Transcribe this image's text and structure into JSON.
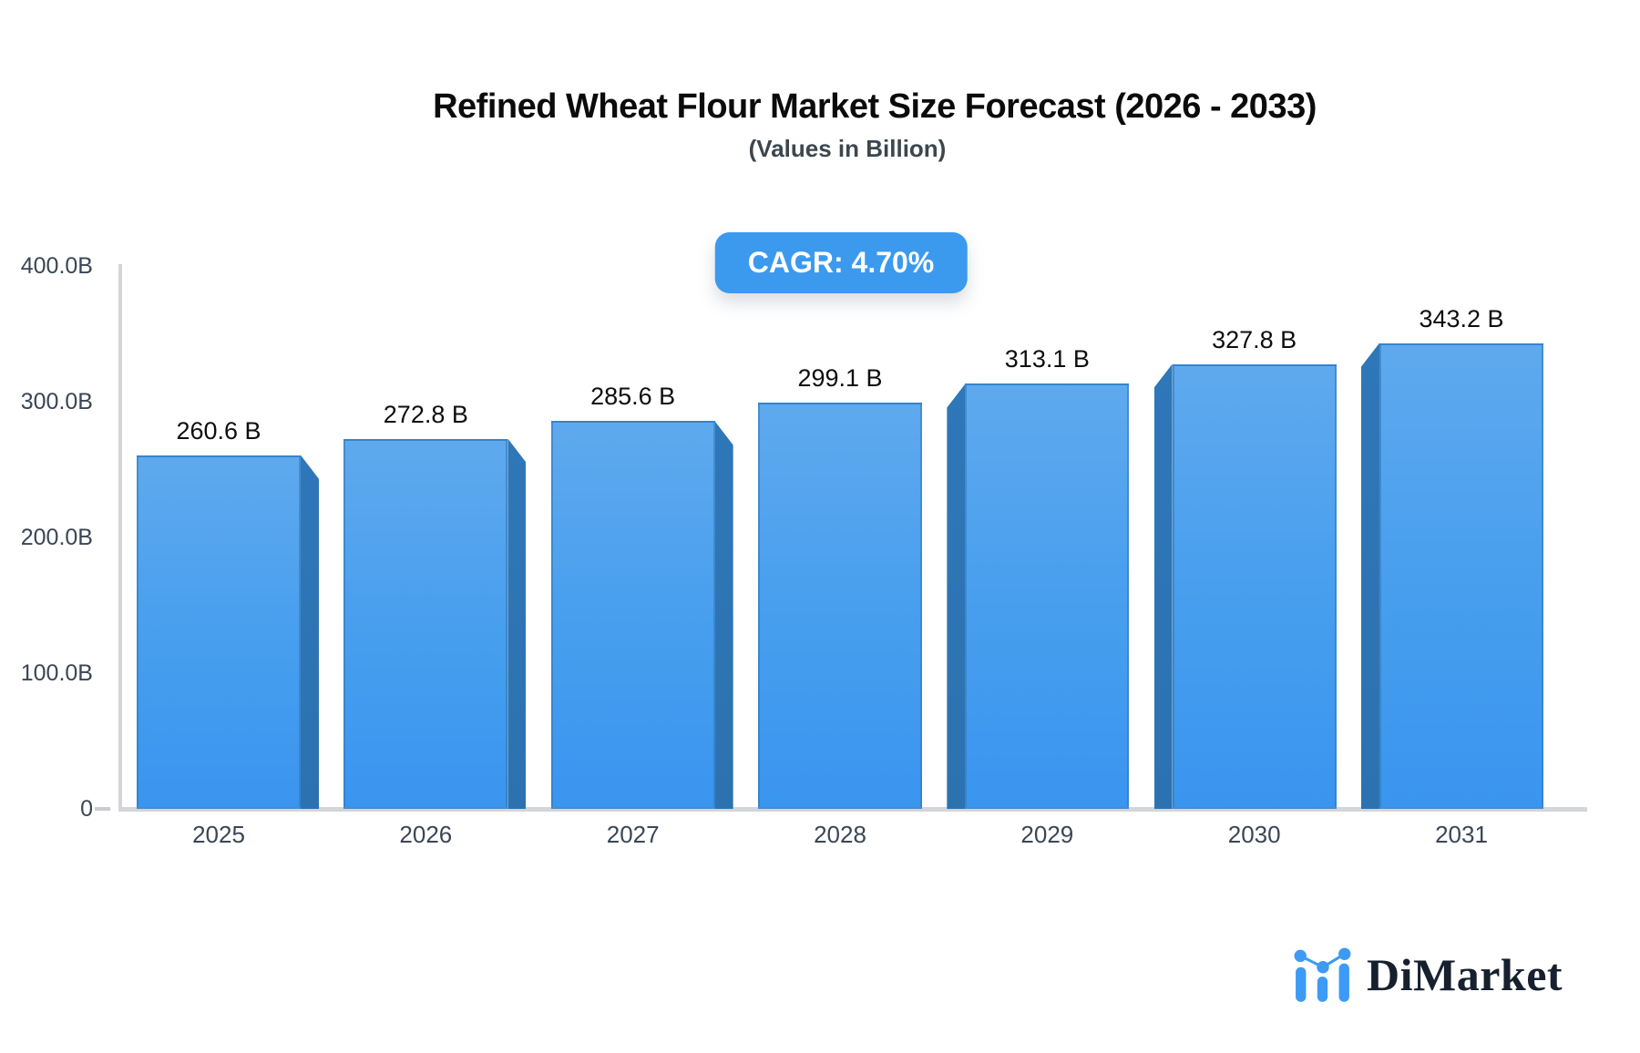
{
  "header": {
    "title": "Refined Wheat Flour Market Size Forecast (2026 - 2033)",
    "subtitle": "(Values in Billion)",
    "cagr_label": "CAGR: 4.70%"
  },
  "chart_data": {
    "type": "bar",
    "title": "Refined Wheat Flour Market Size Forecast (2026 - 2033)",
    "subtitle": "(Values in Billion)",
    "unit": "Billion",
    "cagr": "4.70%",
    "categories": [
      "2025",
      "2026",
      "2027",
      "2028",
      "2029",
      "2030",
      "2031"
    ],
    "values": [
      260.6,
      272.8,
      285.6,
      299.1,
      313.1,
      327.8,
      343.2
    ],
    "value_labels": [
      "260.6 B",
      "272.8 B",
      "285.6 B",
      "299.1 B",
      "313.1 B",
      "327.8 B",
      "343.2 B"
    ],
    "ylim": [
      0,
      400
    ],
    "yticks": [
      {
        "value": 400,
        "label": "400.0B"
      },
      {
        "value": 300,
        "label": "300.0B"
      },
      {
        "value": 200,
        "label": "200.0B"
      },
      {
        "value": 100,
        "label": "100.0B"
      },
      {
        "value": 0,
        "label": "0"
      }
    ],
    "grid": false,
    "legend": false,
    "bar_style": "3d-perspective"
  },
  "colors": {
    "bar_face_top": "#5fa9ee",
    "bar_face_bottom": "#3a95ef",
    "bar_side": "#2d74b4",
    "axis_line": "#d3d5d9",
    "badge_bg": "#3b9aee",
    "badge_text": "#ffffff",
    "value_label": "#0e0e0e",
    "tick_label": "#3a4656",
    "title": "#0b0b0b",
    "logo_blue": "#3d9bf5",
    "logo_text": "#16202e"
  },
  "logo": {
    "text": "DiMarket"
  }
}
